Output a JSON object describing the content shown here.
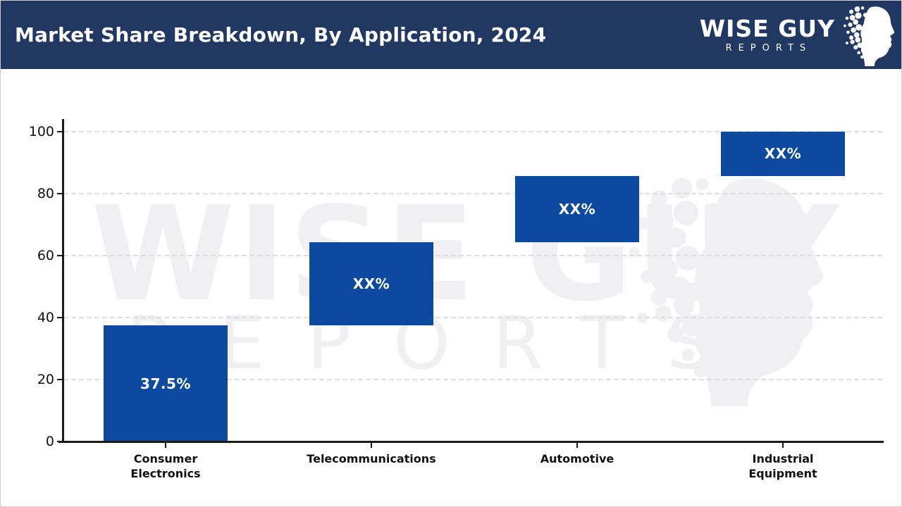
{
  "header": {
    "title": "Market Share Breakdown, By Application, 2024",
    "logo": {
      "brand": "WISE GUY",
      "brand_sub": "REPORTS",
      "head_icon": "dotted-head-profile"
    }
  },
  "watermark": {
    "brand": "WISE GUY",
    "brand_sub": "REPORTS",
    "head_icon": "dotted-head-profile"
  },
  "colors": {
    "header_bg": "#213862",
    "bar": "#0c4a9f",
    "grid": "#dedede",
    "axis": "#1a1a1a",
    "watermark": "#f0f0f2",
    "bar_label": "#ffffff",
    "title_text": "#ffffff"
  },
  "chart_data": {
    "type": "bar",
    "variant": "waterfall-style floating bars",
    "title": "Market Share Breakdown, By Application, 2024",
    "categories": [
      "Consumer Electronics",
      "Telecommunications",
      "Automotive",
      "Industrial Equipment"
    ],
    "bars": [
      {
        "category_lines": [
          "Consumer",
          "Electronics"
        ],
        "range": [
          0,
          37.5
        ],
        "label": "37.5%"
      },
      {
        "category_lines": [
          "Telecommunications"
        ],
        "range": [
          37.5,
          64.3
        ],
        "label": "XX%"
      },
      {
        "category_lines": [
          "Automotive"
        ],
        "range": [
          64.3,
          85.7
        ],
        "label": "XX%"
      },
      {
        "category_lines": [
          "Industrial",
          "Equipment"
        ],
        "range": [
          85.7,
          100
        ],
        "label": "XX%"
      }
    ],
    "ylim": [
      0,
      100
    ],
    "yticks": [
      0,
      20,
      40,
      60,
      80,
      100
    ],
    "xlabel": "",
    "ylabel": "",
    "grid": "horizontal-dashed",
    "legend": "none"
  }
}
